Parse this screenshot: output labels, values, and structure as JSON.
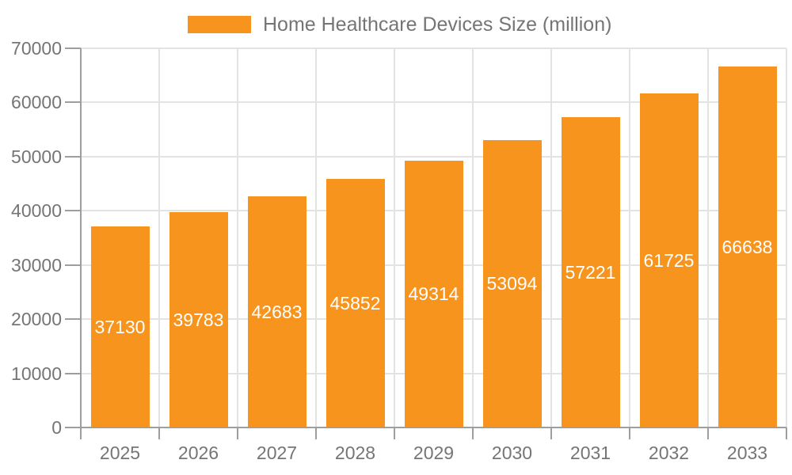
{
  "chart_data": {
    "type": "bar",
    "title": "Home Healthcare Devices Size (million)",
    "legend_position": "top",
    "categories": [
      "2025",
      "2026",
      "2027",
      "2028",
      "2029",
      "2030",
      "2031",
      "2032",
      "2033"
    ],
    "series": [
      {
        "name": "Home Healthcare Devices Size (million)",
        "values": [
          37130,
          39783,
          42683,
          45852,
          49314,
          53094,
          57221,
          61725,
          66638
        ]
      }
    ],
    "value_labels": [
      "37130",
      "39783",
      "42683",
      "45852",
      "49314",
      "53094",
      "57221",
      "61725",
      "66638"
    ],
    "xlabel": "",
    "ylabel": "",
    "ylim": [
      0,
      70000
    ],
    "yticks": [
      0,
      10000,
      20000,
      30000,
      40000,
      50000,
      60000,
      70000
    ],
    "ytick_labels": [
      "0",
      "10000",
      "20000",
      "30000",
      "40000",
      "50000",
      "60000",
      "70000"
    ],
    "grid": true,
    "value_label_position": "inside-center"
  },
  "colors": {
    "bar": "#F7941E",
    "axis_text": "#757575",
    "legend_text": "#757575",
    "value_label": "#ffffff",
    "grid_line": "#e3e3e3",
    "axis_line": "#9e9e9e",
    "background": "#ffffff"
  }
}
